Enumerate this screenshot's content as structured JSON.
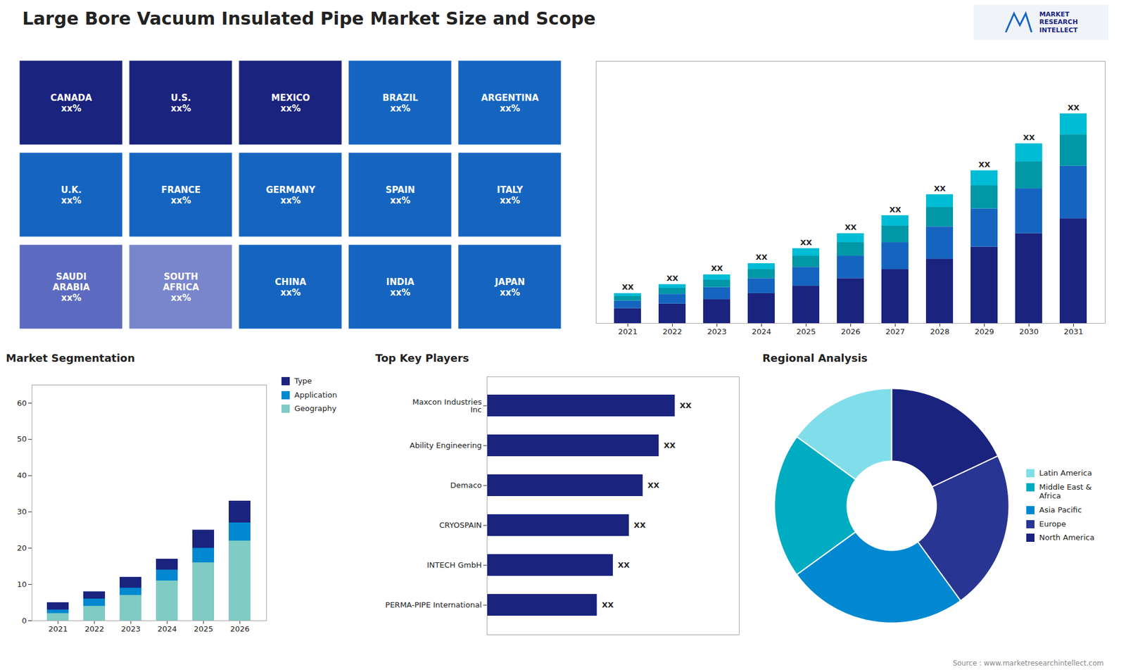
{
  "title": "Large Bore Vacuum Insulated Pipe Market Size and Scope",
  "annotations": [
    "Source : www.marketresearchintellect.com",
    "MARKET\nRESEARCH\nINTELLECT"
  ],
  "chart_data": [
    {
      "type": "map",
      "annotations": [
        "CANADA\nxx%",
        "U.S.\nxx%",
        "MEXICO\nxx%",
        "BRAZIL\nxx%",
        "ARGENTINA\nxx%",
        "U.K.\nxx%",
        "FRANCE\nxx%",
        "GERMANY\nxx%",
        "SPAIN\nxx%",
        "ITALY\nxx%",
        "SAUDI\nARABIA\nxx%",
        "SOUTH\nAFRICA\nxx%",
        "CHINA\nxx%",
        "INDIA\nxx%",
        "JAPAN\nxx%"
      ],
      "colors": [
        "#1a237e",
        "#1a237e",
        "#1a237e",
        "#1565c0",
        "#1565c0",
        "#1565c0",
        "#1565c0",
        "#1565c0",
        "#1565c0",
        "#1565c0",
        "#5c6bc0",
        "#7986cb",
        "#1565c0",
        "#1565c0",
        "#1565c0"
      ]
    },
    {
      "type": "bar",
      "stacked": true,
      "categories": [
        "2021",
        "2022",
        "2023",
        "2024",
        "2025",
        "2026",
        "2027",
        "2028",
        "2029",
        "2030",
        "2031"
      ],
      "series": [
        {
          "color": "#1a237e",
          "values": [
            1.0,
            1.3,
            1.6,
            2.0,
            2.5,
            3.0,
            3.6,
            4.3,
            5.1,
            6.0,
            7.0
          ]
        },
        {
          "color": "#1565c0",
          "values": [
            0.5,
            0.65,
            0.8,
            1.0,
            1.25,
            1.5,
            1.8,
            2.15,
            2.55,
            3.0,
            3.5
          ]
        },
        {
          "color": "#0097a7",
          "values": [
            0.3,
            0.4,
            0.5,
            0.6,
            0.75,
            0.9,
            1.1,
            1.3,
            1.55,
            1.8,
            2.1
          ]
        },
        {
          "color": "#00bcd4",
          "values": [
            0.2,
            0.25,
            0.35,
            0.4,
            0.5,
            0.6,
            0.7,
            0.85,
            1.0,
            1.2,
            1.4
          ]
        }
      ],
      "ylim": [
        0,
        17.5
      ],
      "yticks": [],
      "tick_labels": "x",
      "annotations": [
        "XX",
        "XX",
        "XX",
        "XX",
        "XX",
        "XX",
        "XX",
        "XX",
        "XX",
        "XX",
        "XX"
      ]
    },
    {
      "type": "bar",
      "title": "Market Segmentation",
      "stacked": false,
      "categories": [
        "2021",
        "2022",
        "2023",
        "2024",
        "2025",
        "2026"
      ],
      "series": [
        {
          "name": "Type",
          "color": "#1a237e",
          "values": [
            5,
            8,
            12,
            17,
            25,
            33
          ]
        },
        {
          "name": "Application",
          "color": "#0288d1",
          "values": [
            3,
            6,
            9,
            14,
            20,
            27
          ]
        },
        {
          "name": "Geography",
          "color": "#80cbc4",
          "values": [
            2,
            4,
            7,
            11,
            16,
            22
          ]
        }
      ],
      "ylim": [
        0,
        65
      ],
      "yticks": [
        0,
        10,
        20,
        30,
        40,
        50,
        60
      ],
      "legend": "upper right"
    },
    {
      "type": "bar",
      "orientation": "horizontal",
      "title": "Top Key Players",
      "categories": [
        "Maxcon Industries\nInc",
        "Ability Engineering",
        "Demaco",
        "CRYOSPAIN",
        "INTECH GmbH",
        "PERMA-PIPE International"
      ],
      "values": [
        0.82,
        0.75,
        0.68,
        0.62,
        0.55,
        0.48
      ],
      "color": "#1a237e",
      "xlim": [
        0,
        1.1
      ],
      "xticks": [],
      "tick_labels": "y",
      "annotations": [
        "XX",
        "XX",
        "XX",
        "XX",
        "XX",
        "XX"
      ]
    },
    {
      "type": "pie",
      "title": "Regional Analysis",
      "categories": [
        "Latin America",
        "Middle East &\nAfrica",
        "Asia Pacific",
        "Europe",
        "North America"
      ],
      "values": [
        15,
        20,
        25,
        22,
        18
      ],
      "colors": [
        "#80deea",
        "#00acc1",
        "#0288d1",
        "#283593",
        "#1a237e"
      ],
      "legend": "right"
    }
  ]
}
